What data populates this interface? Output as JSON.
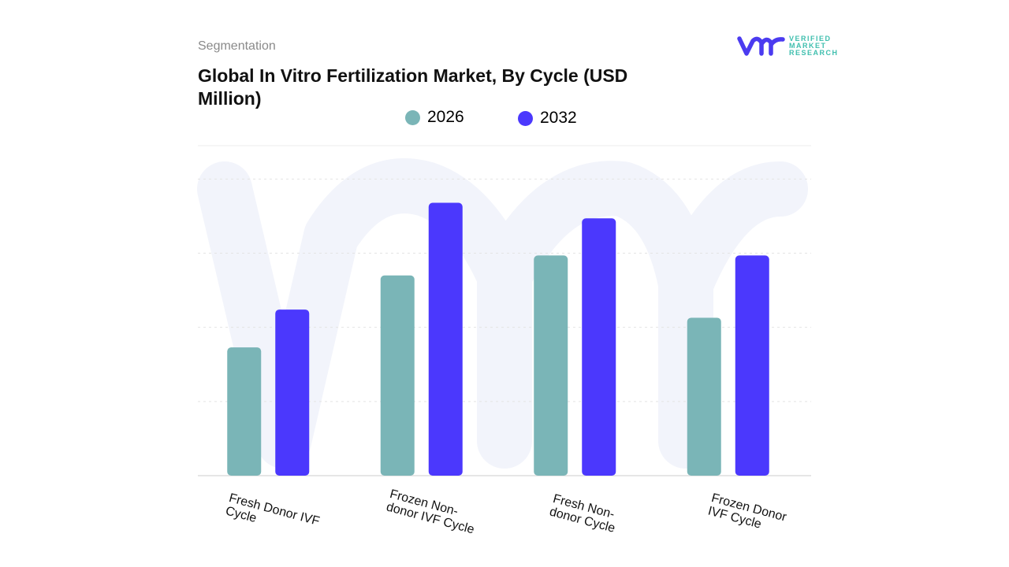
{
  "header": {
    "section": "Segmentation",
    "title": "Global In Vitro Fertilization Market, By Cycle (USD Million)"
  },
  "logo": {
    "mark": "vmr",
    "text_lines": [
      "VERIFIED",
      "MARKET",
      "RESEARCH"
    ],
    "color_mark": "#4b3bf0",
    "color_text": "#3fbfae"
  },
  "chart_data": {
    "type": "bar",
    "title": "Global In Vitro Fertilization Market, By Cycle (USD Million)",
    "categories": [
      "Fresh Donor IVF Cycle",
      "Frozen Non-donor IVF Cycle",
      "Fresh Non-donor Cycle",
      "Frozen Donor IVF Cycle"
    ],
    "category_label_lines": [
      [
        "Fresh Donor IVF",
        "Cycle"
      ],
      [
        "Frozen Non-",
        "donor IVF Cycle"
      ],
      [
        "Fresh Non-",
        "donor Cycle"
      ],
      [
        "Frozen Donor",
        "IVF Cycle"
      ]
    ],
    "series": [
      {
        "name": "2026",
        "color": "#7ab5b7",
        "values": [
          1.73,
          2.7,
          2.97,
          2.13
        ]
      },
      {
        "name": "2032",
        "color": "#4b38fd",
        "values": [
          2.24,
          3.68,
          3.47,
          2.97
        ]
      }
    ],
    "ylim": [
      0,
      4.45
    ],
    "y_ticks_labeled": false,
    "grid": true,
    "legend_position": "top-center",
    "xlabel": "",
    "ylabel": ""
  }
}
